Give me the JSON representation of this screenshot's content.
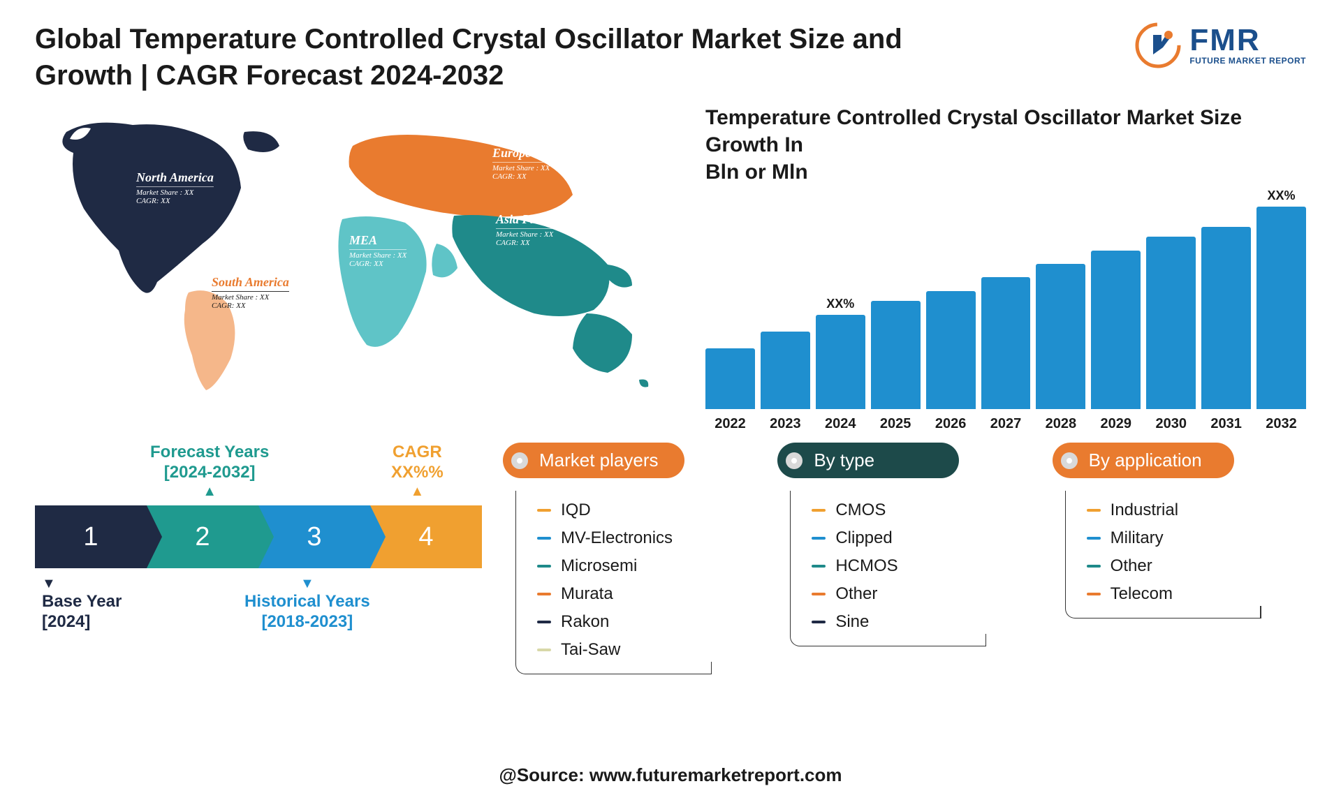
{
  "title": "Global Temperature Controlled Crystal Oscillator Market Size and Growth | CAGR Forecast 2024-2032",
  "logo": {
    "fmr": "FMR",
    "sub": "FUTURE MARKET REPORT"
  },
  "colors": {
    "navy": "#1f2a44",
    "orange": "#e97b2f",
    "teal": "#1f8a8a",
    "cyan": "#5fc4c7",
    "peach": "#f5b78a",
    "blue_bar": "#1f8fcf",
    "blue_logo": "#1b4f8c",
    "tl1": "#1f2a44",
    "tl2": "#1f9a8f",
    "tl3": "#1f8fcf",
    "tl4": "#f0a030"
  },
  "map": {
    "regions": [
      {
        "key": "na",
        "name": "North America",
        "share": "Market Share : XX",
        "cagr": "CAGR: XX"
      },
      {
        "key": "sa",
        "name": "South America",
        "share": "Market Share : XX",
        "cagr": "CAGR: XX"
      },
      {
        "key": "eu",
        "name": "Europe",
        "share": "Market Share : XX",
        "cagr": "CAGR: XX"
      },
      {
        "key": "mea",
        "name": "MEA",
        "share": "Market Share : XX",
        "cagr": "CAGR: XX"
      },
      {
        "key": "ap",
        "name": "Asia Pacific",
        "share": "Market Share : XX",
        "cagr": "CAGR: XX"
      }
    ]
  },
  "chart": {
    "title": "Temperature Controlled Crystal Oscillator Market Size Growth In\nBln or Mln",
    "type": "bar",
    "categories": [
      "2022",
      "2023",
      "2024",
      "2025",
      "2026",
      "2027",
      "2028",
      "2029",
      "2030",
      "2031",
      "2032"
    ],
    "values": [
      90,
      115,
      140,
      160,
      175,
      195,
      215,
      235,
      255,
      270,
      300
    ],
    "ylim": [
      0,
      310
    ],
    "bar_color": "#1f8fcf",
    "background_color": "#ffffff",
    "label_fontsize": 20,
    "annotations": [
      {
        "index": 2,
        "text": "XX%"
      },
      {
        "index": 10,
        "text": "XX%"
      }
    ]
  },
  "timeline": {
    "segments": [
      {
        "num": "1",
        "color": "#1f2a44"
      },
      {
        "num": "2",
        "color": "#1f9a8f"
      },
      {
        "num": "3",
        "color": "#1f8fcf"
      },
      {
        "num": "4",
        "color": "#f0a030"
      }
    ],
    "annotations": {
      "base": {
        "title": "Base Year",
        "sub": "[2024]",
        "color": "#1f2a44"
      },
      "forecast": {
        "title": "Forecast Years",
        "sub": "[2024-2032]",
        "color": "#1f9a8f"
      },
      "historical": {
        "title": "Historical Years",
        "sub": "[2018-2023]",
        "color": "#1f8fcf"
      },
      "cagr": {
        "title": "CAGR",
        "sub": "XX%%",
        "color": "#f0a030"
      }
    }
  },
  "categories": [
    {
      "title": "Market players",
      "pill_color": "#e97b2f",
      "items": [
        {
          "label": "IQD",
          "tick": "#f0a030"
        },
        {
          "label": "MV-Electronics",
          "tick": "#1f8fcf"
        },
        {
          "label": "Microsemi",
          "tick": "#1f8a8a"
        },
        {
          "label": "Murata",
          "tick": "#e97b2f"
        },
        {
          "label": "Rakon",
          "tick": "#1f2a44"
        },
        {
          "label": "Tai-Saw",
          "tick": "#d8d8a8"
        }
      ]
    },
    {
      "title": "By type",
      "pill_color": "#1d4a4a",
      "items": [
        {
          "label": "CMOS",
          "tick": "#f0a030"
        },
        {
          "label": "Clipped",
          "tick": "#1f8fcf"
        },
        {
          "label": "HCMOS",
          "tick": "#1f8a8a"
        },
        {
          "label": "Other",
          "tick": "#e97b2f"
        },
        {
          "label": "Sine",
          "tick": "#1f2a44"
        }
      ]
    },
    {
      "title": "By application",
      "pill_color": "#e97b2f",
      "items": [
        {
          "label": "Industrial",
          "tick": "#f0a030"
        },
        {
          "label": "Military",
          "tick": "#1f8fcf"
        },
        {
          "label": "Other",
          "tick": "#1f8a8a"
        },
        {
          "label": "Telecom",
          "tick": "#e97b2f"
        }
      ]
    }
  ],
  "source": "@Source: www.futuremarketreport.com"
}
